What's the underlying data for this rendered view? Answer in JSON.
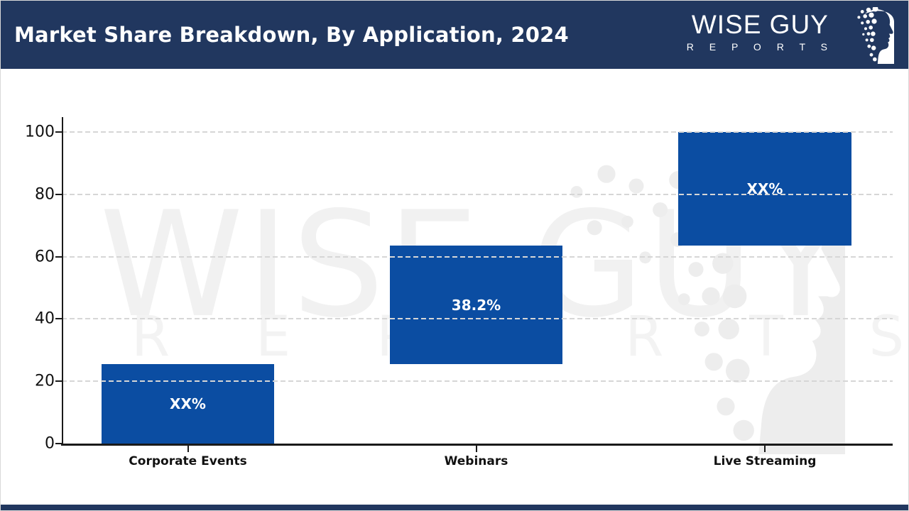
{
  "header": {
    "title": "Market Share Breakdown, By Application, 2024",
    "logo": {
      "name": "WISE GUY",
      "subtitle": "R E P O R T S"
    }
  },
  "watermark": {
    "line1": "WISE GUY",
    "line2": "R E P O R T S"
  },
  "colors": {
    "header_bg": "#21375f",
    "footer_bg": "#21375f",
    "bar": "#0b4da2",
    "bar_label": "#ffffff",
    "grid": "#d6d6d6",
    "axis": "#1a1a1a",
    "watermark": "#f1f1f1"
  },
  "chart_data": {
    "type": "bar",
    "subtype": "waterfall-floating-bars",
    "title": "Market Share Breakdown, By Application, 2024",
    "categories": [
      "Corporate Events",
      "Webinars",
      "Live Streaming"
    ],
    "bars": [
      {
        "category": "Corporate Events",
        "start": 0,
        "end": 25.4,
        "label": "XX%"
      },
      {
        "category": "Webinars",
        "start": 25.4,
        "end": 63.6,
        "label": "38.2%"
      },
      {
        "category": "Live Streaming",
        "start": 63.6,
        "end": 100,
        "label": "XX%"
      }
    ],
    "ylim": [
      0,
      100
    ],
    "yticks": [
      0,
      20,
      40,
      60,
      80,
      100
    ],
    "xlabel": "",
    "ylabel": "",
    "grid": "horizontal-dashed",
    "legend": "none"
  }
}
